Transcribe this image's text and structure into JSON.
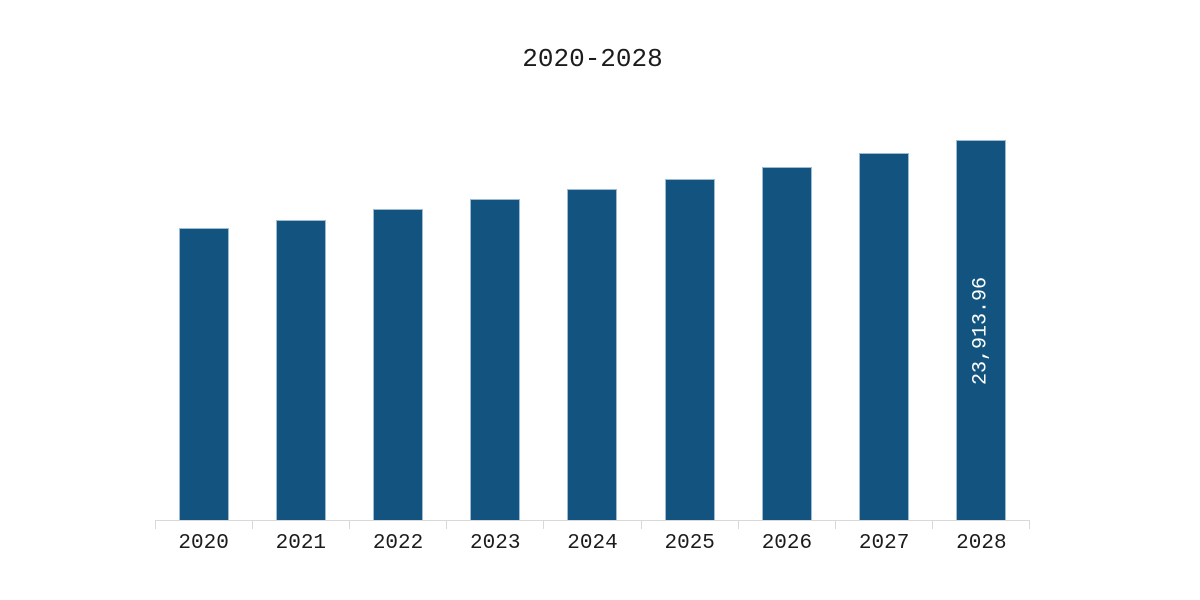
{
  "chart_data": {
    "type": "bar",
    "title": "2020-2028",
    "xlabel": "",
    "ylabel": "",
    "categories": [
      "2020",
      "2021",
      "2022",
      "2023",
      "2024",
      "2025",
      "2026",
      "2027",
      "2028"
    ],
    "values": [
      18376,
      18879,
      19571,
      20200,
      20874,
      21503,
      22233,
      23114,
      23913.96
    ],
    "data_labels": [
      "",
      "",
      "",
      "",
      "",
      "",
      "",
      "",
      "23,913.96"
    ],
    "ylim": [
      0,
      26450
    ],
    "grid": false,
    "legend": "none",
    "y_axis_visible": false,
    "colors": {
      "bar_fill": "#12547f",
      "bar_edge": "#9dbcd2",
      "axis_line": "#d9d9d9",
      "title_text": "#1c1c1c",
      "tick_label_text": "#1c1c1c",
      "bar_label_text": "#ffffff",
      "background": "#ffffff"
    }
  }
}
